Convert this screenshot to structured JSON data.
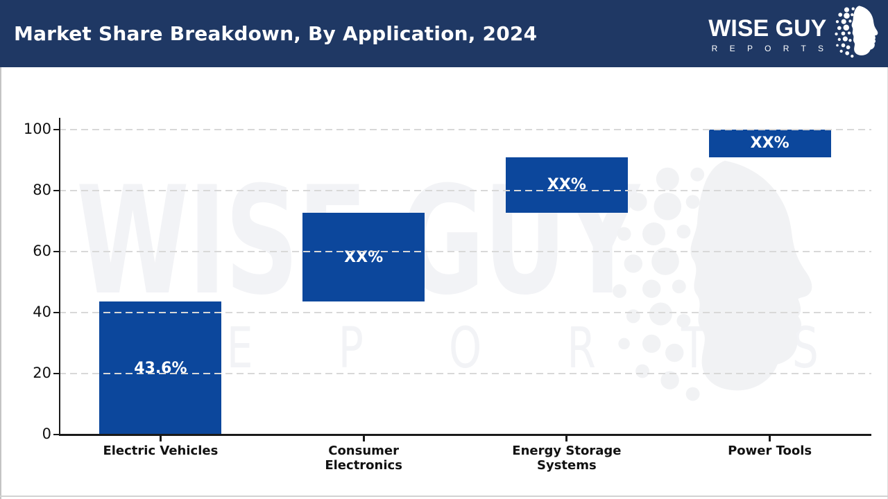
{
  "header": {
    "title": "Market Share Breakdown, By Application, 2024",
    "logo": {
      "brand": "WISE GUY",
      "brand_sub": "R E P O R T S"
    }
  },
  "watermark": {
    "brand": "WISE GUY",
    "brand_sub": "R E P O R T S"
  },
  "chart_data": {
    "type": "bar",
    "variant": "waterfall",
    "title": "Market Share Breakdown, By Application, 2024",
    "categories": [
      "Electric Vehicles",
      "Consumer Electronics",
      "Energy Storage Systems",
      "Power Tools"
    ],
    "bars": [
      {
        "category": "Electric Vehicles",
        "category_lines": [
          "Electric Vehicles"
        ],
        "start": 0,
        "end": 43.6,
        "label": "43.6%"
      },
      {
        "category": "Consumer Electronics",
        "category_lines": [
          "Consumer",
          "Electronics"
        ],
        "start": 43.6,
        "end": 72.7,
        "label": "XX%"
      },
      {
        "category": "Energy Storage Systems",
        "category_lines": [
          "Energy Storage",
          "Systems"
        ],
        "start": 72.7,
        "end": 91.0,
        "label": "XX%"
      },
      {
        "category": "Power Tools",
        "category_lines": [
          "Power Tools"
        ],
        "start": 91.0,
        "end": 100.0,
        "label": "XX%"
      }
    ],
    "xlabel": "",
    "ylabel": "",
    "ylim": [
      0,
      100
    ],
    "yticks": [
      0,
      20,
      40,
      60,
      80,
      100
    ],
    "grid": "horizontal-dashed",
    "legend": "none"
  },
  "colors": {
    "header_bg": "#1F3864",
    "bar": "#0C479C",
    "bar_label": "#FFFFFF",
    "grid": "#D8D8D8",
    "axis": "#1A1A1A",
    "watermark": "#F2F3F6",
    "title_text": "#FFFFFF"
  }
}
